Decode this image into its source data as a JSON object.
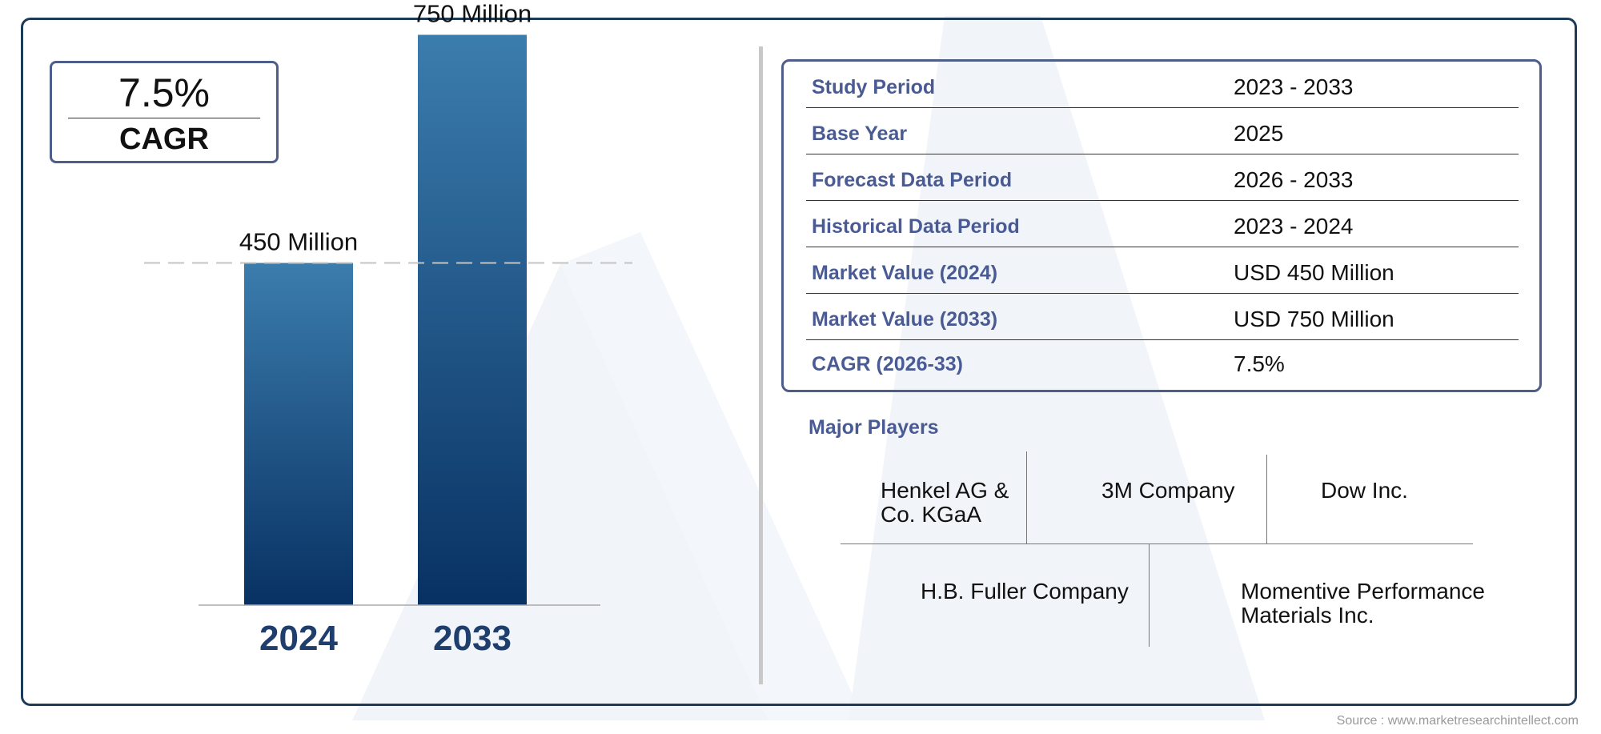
{
  "source": "Source : www.marketresearchintellect.com",
  "cagr": {
    "value": "7.5%",
    "label": "CAGR"
  },
  "chart_data": {
    "type": "bar",
    "categories": [
      "2024",
      "2033"
    ],
    "values": [
      450,
      750
    ],
    "data_labels": [
      "450 Million",
      "750 Million"
    ],
    "reference_line": 450,
    "colors": {
      "bar_top": "#3b7dad",
      "bar_bottom": "#083163",
      "category_label": "#1e3e6d"
    }
  },
  "info": {
    "rows": [
      {
        "label": "Study Period",
        "value": "2023 - 2033"
      },
      {
        "label": "Base Year",
        "value": "2025"
      },
      {
        "label": "Forecast Data Period",
        "value": "2026 - 2033"
      },
      {
        "label": "Historical Data Period",
        "value": "2023 - 2024"
      },
      {
        "label": "Market Value (2024)",
        "value": "USD 450 Million"
      },
      {
        "label": "Market Value (2033)",
        "value": "USD 750 Million"
      },
      {
        "label": "CAGR (2026-33)",
        "value": "7.5%"
      }
    ]
  },
  "players": {
    "title": "Major Players",
    "names": [
      "Henkel AG & Co. KGaA",
      "3M Company",
      "Dow Inc.",
      "H.B. Fuller Company",
      "Momentive Performance Materials Inc."
    ]
  },
  "colors": {
    "frame": "#1d3b57",
    "label_blue": "#4a5b94",
    "watermark": "#f1f4f9"
  }
}
